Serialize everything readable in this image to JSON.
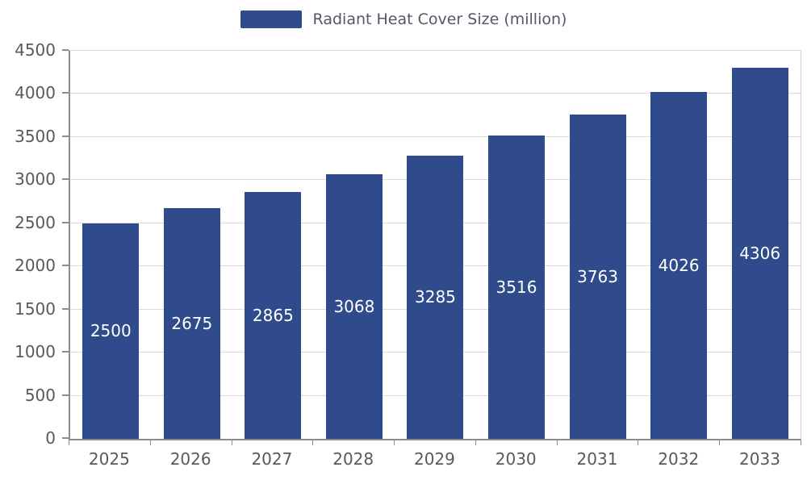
{
  "chart_data": {
    "type": "bar",
    "title": "Radiant Heat Cover Size (million)",
    "categories": [
      "2025",
      "2026",
      "2027",
      "2028",
      "2029",
      "2030",
      "2031",
      "2032",
      "2033"
    ],
    "values": [
      2500,
      2675,
      2865,
      3068,
      3285,
      3516,
      3763,
      4026,
      4306
    ],
    "xlabel": "",
    "ylabel": "",
    "ylim": [
      0,
      4500
    ],
    "yticks": [
      0,
      500,
      1000,
      1500,
      2000,
      2500,
      3000,
      3500,
      4000,
      4500
    ],
    "grid": true,
    "legend_position": "top",
    "bar_labels_inside": true,
    "colors": {
      "bar": "#2f4b8c",
      "bar_label": "#ffffff",
      "axis_text": "#595959",
      "legend_text": "#565666",
      "gridline": "#dadada",
      "axis_line": "#8c8c8c",
      "background": "#ffffff"
    }
  }
}
